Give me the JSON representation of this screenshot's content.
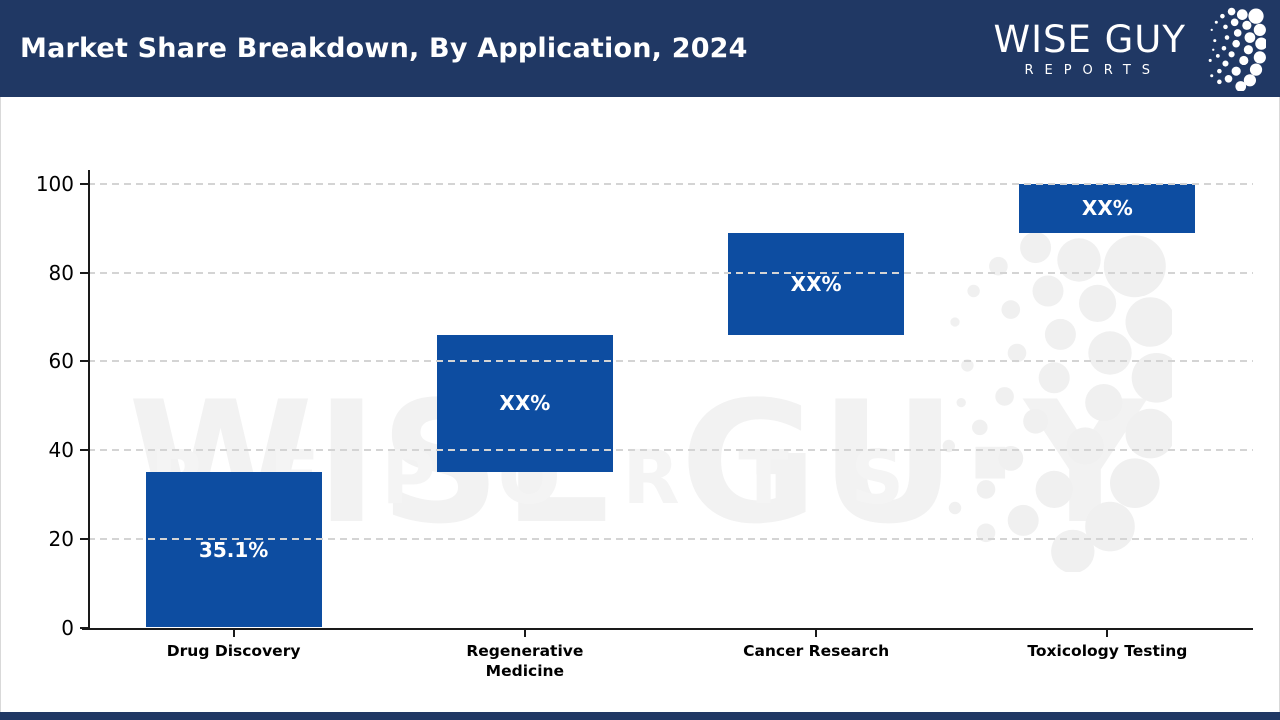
{
  "header": {
    "title": "Market Share Breakdown, By Application, 2024",
    "logo": {
      "line1": "WISE GUY",
      "line2": "REPORTS"
    }
  },
  "watermark": {
    "line1": "WISE GU·Y",
    "line2": "REPORTS"
  },
  "colors": {
    "header_navy": "#203864",
    "footer_navy": "#203864",
    "bar_blue": "#0d4da1",
    "gridline_gray": "#d4d4d4",
    "axis_black": "#1a1a1a",
    "watermark_gray": "#f2f2f2"
  },
  "chart_data": {
    "type": "bar",
    "subtype": "waterfall-stacked-breakdown",
    "title": "Market Share Breakdown, By Application, 2024",
    "categories": [
      "Drug Discovery",
      "Regenerative\nMedicine",
      "Cancer Research",
      "Toxicology Testing"
    ],
    "segments": [
      {
        "category": "Drug Discovery",
        "start": 0,
        "end": 35.1,
        "value": 35.1,
        "label": "35.1%"
      },
      {
        "category": "Regenerative\nMedicine",
        "start": 35.1,
        "end": 66,
        "value": 30.9,
        "label": "XX%"
      },
      {
        "category": "Cancer Research",
        "start": 66,
        "end": 89,
        "value": 23.0,
        "label": "XX%"
      },
      {
        "category": "Toxicology Testing",
        "start": 89,
        "end": 100,
        "value": 11.0,
        "label": "XX%"
      }
    ],
    "xlabel": "",
    "ylabel": "",
    "ylim": [
      0,
      100
    ],
    "yticks": [
      0,
      20,
      40,
      60,
      80,
      100
    ],
    "grid": "horizontal-dashed",
    "legend": "none",
    "bar_color": "#0d4da1",
    "bar_label_color": "#ffffff"
  }
}
